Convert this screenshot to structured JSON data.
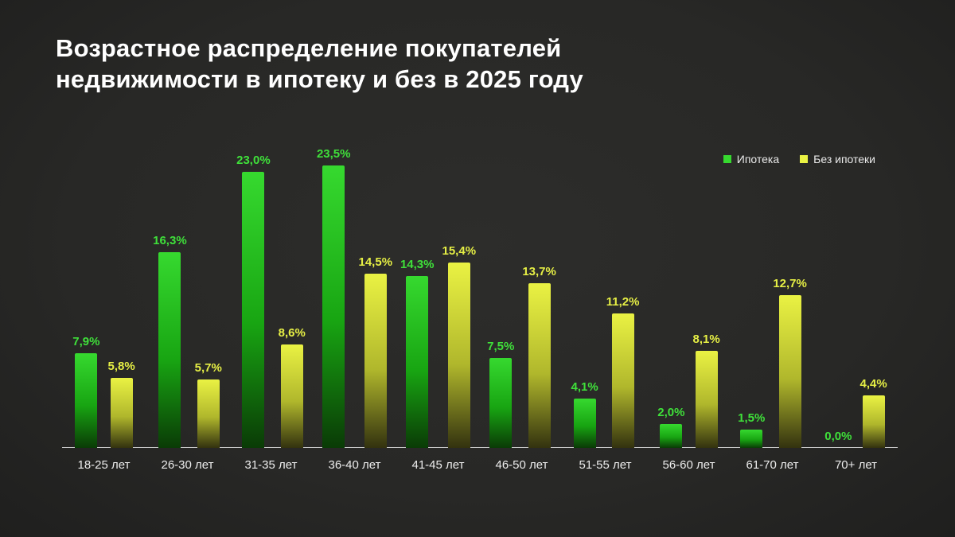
{
  "title": {
    "line1": "Возрастное распределение покупателей",
    "line2": "недвижимости в ипотеку и без в 2025 году"
  },
  "legend": {
    "mortgage": "Ипотека",
    "no_mortgage": "Без ипотеки"
  },
  "colors": {
    "background": "#292927",
    "mortgage_top": "#36d92f",
    "mortgage_mid": "#18a512",
    "mortgage_bottom": "#0a3b06",
    "mortgage_label": "#3fe03a",
    "no_mortgage_top": "#eaf243",
    "no_mortgage_mid": "#b0b72c",
    "no_mortgage_bottom": "#33320f",
    "no_mortgage_label": "#e6ef45",
    "axis": "#c6c6c6",
    "text": "#f2f2f2"
  },
  "chart_data": {
    "type": "bar",
    "title": "Возрастное распределение покупателей недвижимости в ипотеку и без в 2025 году",
    "categories": [
      "18-25 лет",
      "26-30 лет",
      "31-35 лет",
      "36-40 лет",
      "41-45 лет",
      "46-50 лет",
      "51-55 лет",
      "56-60 лет",
      "61-70 лет",
      "70+ лет"
    ],
    "series": [
      {
        "name": "Ипотека",
        "values": [
          7.9,
          16.3,
          23.0,
          23.5,
          14.3,
          7.5,
          4.1,
          2.0,
          1.5,
          0.0
        ]
      },
      {
        "name": "Без ипотеки",
        "values": [
          5.8,
          5.7,
          8.6,
          14.5,
          15.4,
          13.7,
          11.2,
          8.1,
          12.7,
          4.4
        ]
      }
    ],
    "value_format": "percent-comma-one-decimal",
    "xlabel": "",
    "ylabel": "",
    "ylim": [
      0,
      25
    ],
    "grid": false,
    "legend_position": "top-right"
  }
}
